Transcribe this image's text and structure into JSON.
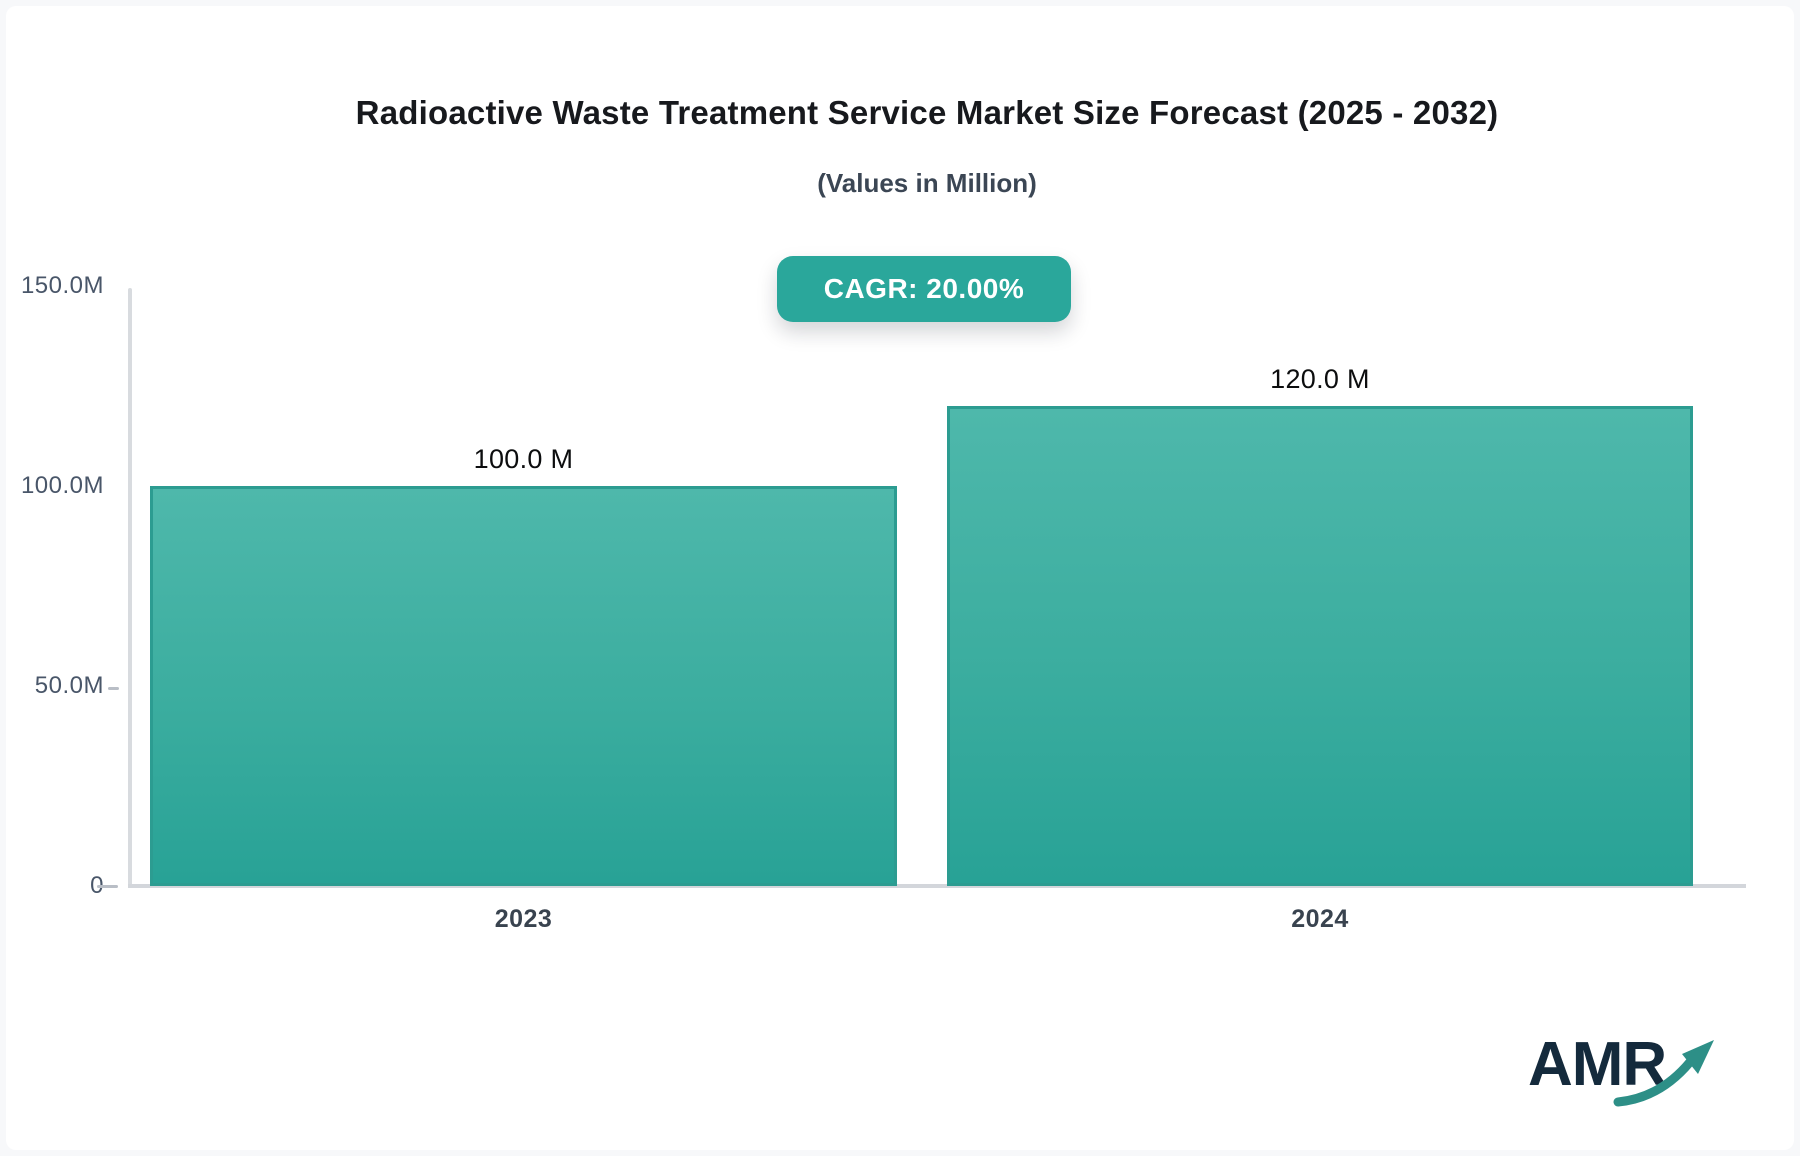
{
  "page": {
    "background": "#f7f8fa",
    "card_background": "#ffffff"
  },
  "header": {
    "title": "Radioactive Waste Treatment Service Market Size Forecast (2025 - 2032)",
    "subtitle": "(Values in Million)",
    "cagr_badge": "CAGR: 20.00%",
    "badge_color": "#2aa79b"
  },
  "logo": {
    "text": "AMR",
    "text_color": "#142a3c",
    "arrow_color": "#2d8f87"
  },
  "chart_data": {
    "type": "bar",
    "title": "Radioactive Waste Treatment Service Market Size Forecast (2025 - 2032)",
    "subtitle": "(Values in Million)",
    "cagr_percent": "20.00%",
    "unit": "Million",
    "categories": [
      "2023",
      "2024"
    ],
    "values": [
      100.0,
      120.0
    ],
    "value_labels": [
      "100.0 M",
      "120.0 M"
    ],
    "ylim": [
      0,
      150
    ],
    "y_ticks": [
      {
        "label": "150.0M",
        "value": 150
      },
      {
        "label": "100.0M",
        "value": 100
      },
      {
        "label": "50.0M",
        "value": 50
      },
      {
        "label": "0",
        "value": 0
      }
    ],
    "bar_color_top": "#4eb8ab",
    "bar_color_bottom": "#28a296",
    "bar_border_color": "#2c9c91",
    "legend": "none",
    "grid": "off"
  }
}
